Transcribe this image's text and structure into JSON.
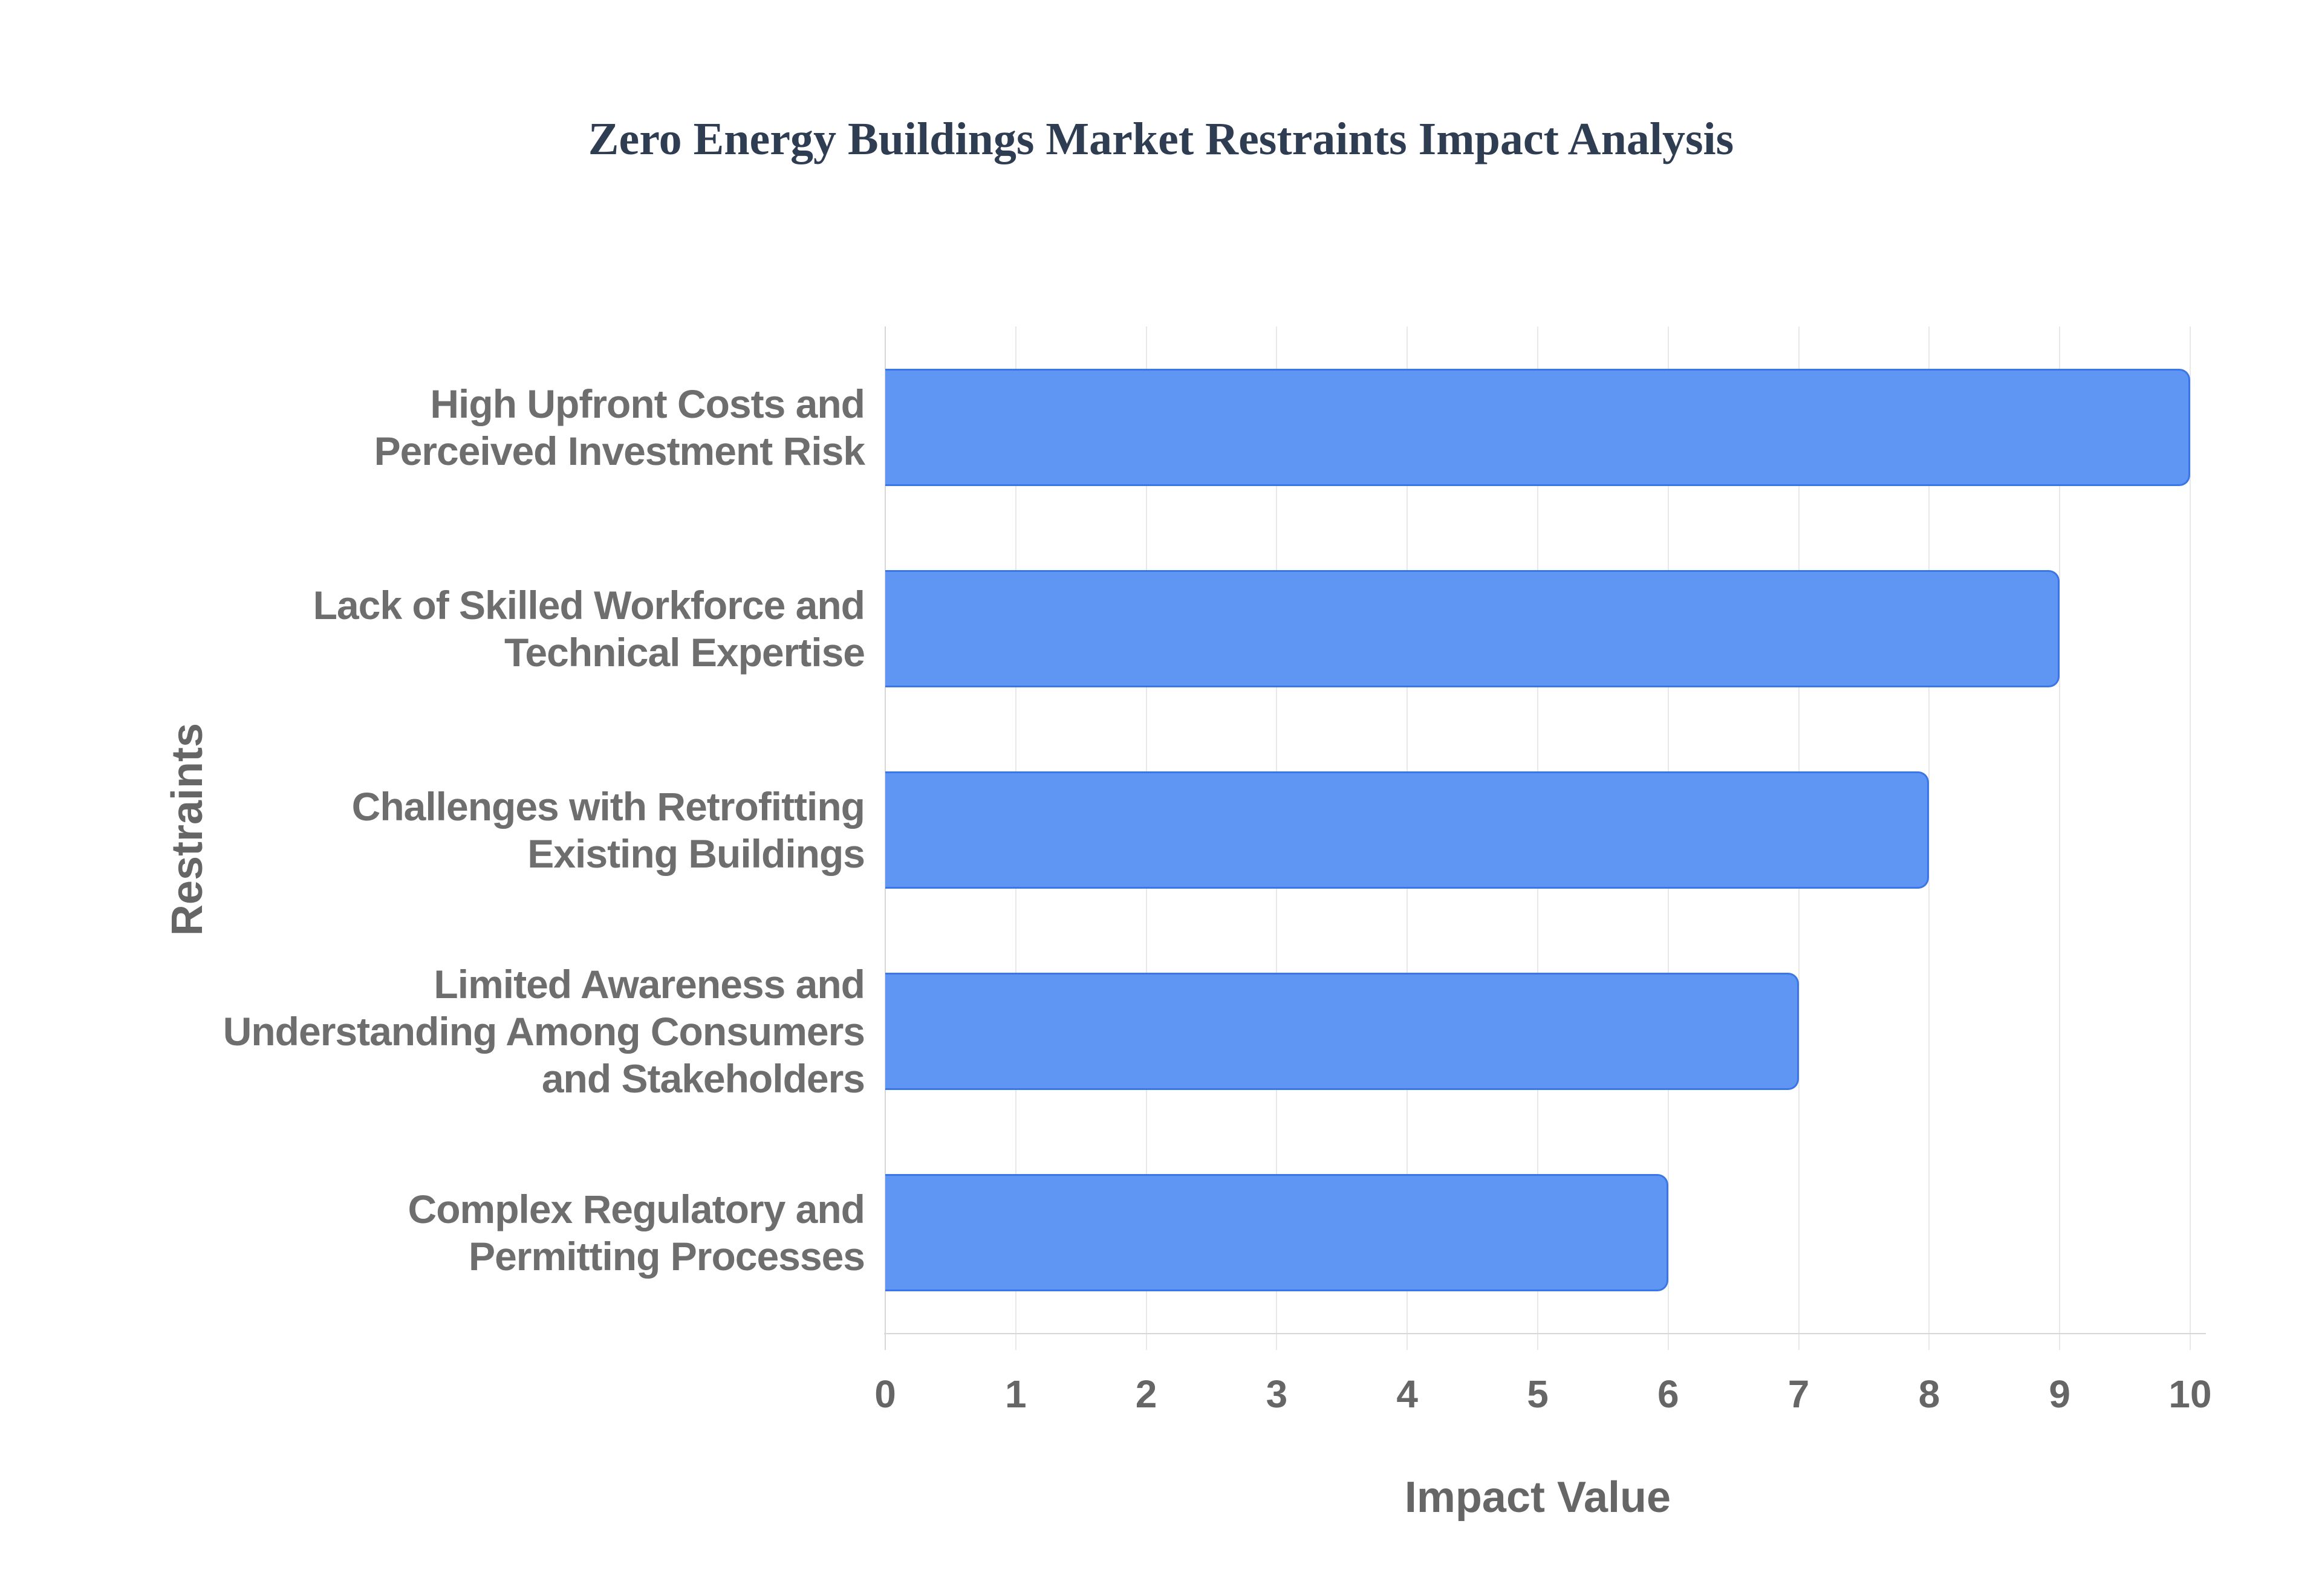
{
  "title": "Zero Energy Buildings Market Restraints Impact Analysis",
  "chart_data": {
    "type": "bar",
    "orientation": "horizontal",
    "title": "Zero Energy Buildings Market Restraints Impact Analysis",
    "xlabel": "Impact Value",
    "ylabel": "Restraints",
    "categories": [
      "High Upfront Costs and\nPerceived Investment Risk",
      "Lack of Skilled Workforce and\nTechnical Expertise",
      "Challenges with Retrofitting\nExisting Buildings",
      "Limited Awareness and\nUnderstanding Among Consumers\nand Stakeholders",
      "Complex Regulatory and\nPermitting Processes"
    ],
    "values": [
      10,
      9,
      8,
      7,
      6
    ],
    "xlim": [
      0,
      10
    ],
    "xticks": [
      0,
      1,
      2,
      3,
      4,
      5,
      6,
      7,
      8,
      9,
      10
    ],
    "grid": "vertical",
    "legend": "none",
    "colors": {
      "bar_fill": "#5F96F3",
      "bar_border": "#3B76E6",
      "title_text": "#2F3D52",
      "axis_text": "#666666",
      "category_text": "#6E6E6E",
      "gridline": "#E8E8E8",
      "axis_line": "#D7D7D7",
      "background": "#FFFFFF"
    }
  }
}
